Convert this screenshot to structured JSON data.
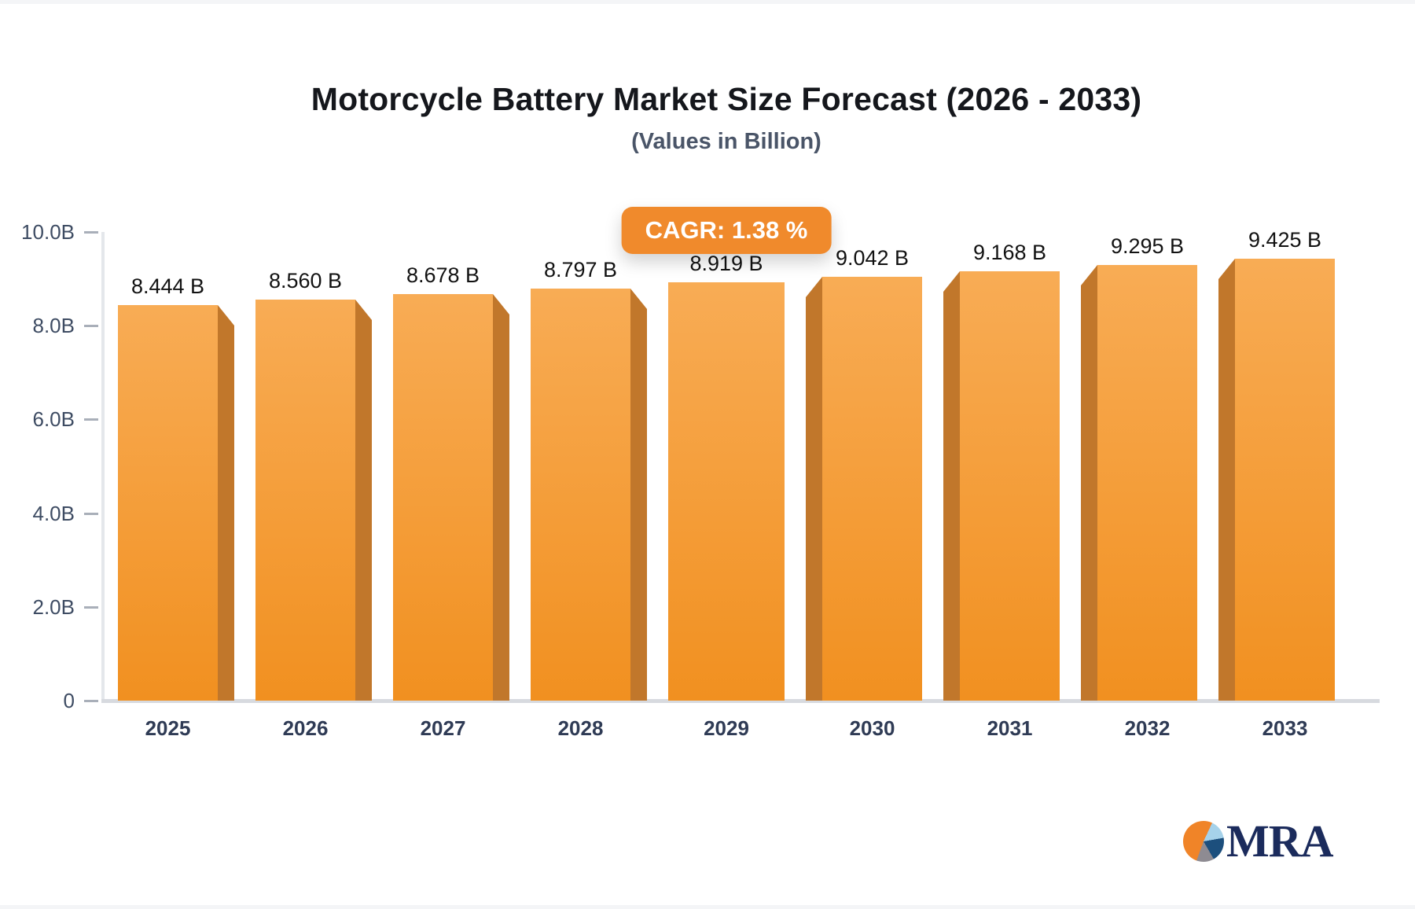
{
  "header": {
    "title": "Motorcycle Battery Market Size Forecast (2026 - 2033)",
    "subtitle": "(Values in Billion)"
  },
  "cagr_badge": {
    "label": "CAGR: 1.38 %",
    "color": "#F08A2C",
    "text_color": "#FFFFFF"
  },
  "chart_data": {
    "type": "bar",
    "title": "Motorcycle Battery Market Size Forecast (2026 - 2033)",
    "subtitle": "(Values in Billion)",
    "categories": [
      "2025",
      "2026",
      "2027",
      "2028",
      "2029",
      "2030",
      "2031",
      "2032",
      "2033"
    ],
    "values": [
      8.444,
      8.56,
      8.678,
      8.797,
      8.919,
      9.042,
      9.168,
      9.295,
      9.425
    ],
    "value_labels": [
      "8.444 B",
      "8.560 B",
      "8.678 B",
      "8.797 B",
      "8.919 B",
      "9.042 B",
      "9.168 B",
      "9.295 B",
      "9.425 B"
    ],
    "cagr_label": "CAGR: 1.38 %",
    "xlabel": "",
    "ylabel": "",
    "ylim": [
      0,
      10
    ],
    "yticks": [
      {
        "value": 0,
        "label": "0"
      },
      {
        "value": 2,
        "label": "2.0B"
      },
      {
        "value": 4,
        "label": "4.0B"
      },
      {
        "value": 6,
        "label": "6.0B"
      },
      {
        "value": 8,
        "label": "8.0B"
      },
      {
        "value": 10,
        "label": "10.0B"
      }
    ],
    "grid": false,
    "legend": "none",
    "colors": {
      "bar_front_top": "#F8AC55",
      "bar_front_bottom": "#F19020",
      "bar_side": "#C1772B",
      "badge": "#F08A2C",
      "axis_line": "#E4E7EB",
      "baseline": "#D7DADF",
      "tick_dash": "#A9AFB9",
      "tick_label": "#3E4C63",
      "x_label": "#2F3B55",
      "value_label": "#121212"
    }
  },
  "logo": {
    "text": "MRA",
    "icon": "pie-chart-icon",
    "colors": {
      "orange": "#F08428",
      "light_blue": "#A6D2EA",
      "navy": "#1C4F7D",
      "gray": "#8E8B92",
      "text": "#1B2B5C"
    }
  }
}
